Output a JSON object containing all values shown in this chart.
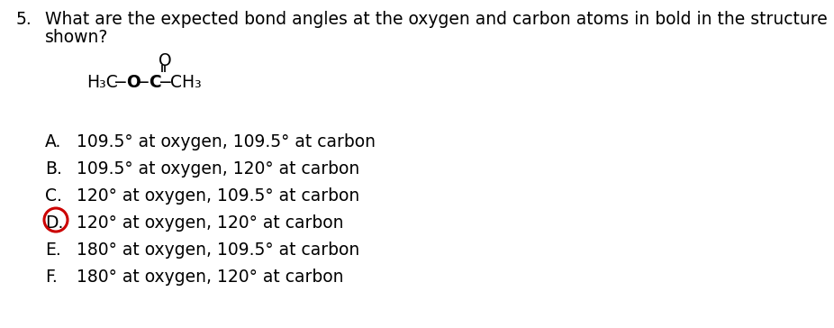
{
  "question_number": "5.",
  "question_line1": "What are the expected bond angles at the oxygen and carbon atoms in bold in the structure",
  "question_line2": "shown?",
  "background_color": "#ffffff",
  "text_color": "#000000",
  "fs_main": 13.5,
  "options": [
    {
      "label": "A.",
      "text": "109.5° at oxygen, 109.5° at carbon",
      "circled": false
    },
    {
      "label": "B.",
      "text": "109.5° at oxygen, 120° at carbon",
      "circled": false
    },
    {
      "label": "C.",
      "text": "120° at oxygen, 109.5° at carbon",
      "circled": false
    },
    {
      "label": "D.",
      "text": "120° at oxygen, 120° at carbon",
      "circled": true
    },
    {
      "label": "E.",
      "text": "180° at oxygen, 109.5° at carbon",
      "circled": false
    },
    {
      "label": "F.",
      "text": "180° at oxygen, 120° at carbon",
      "circled": false
    }
  ],
  "circle_color": "#cc0000"
}
